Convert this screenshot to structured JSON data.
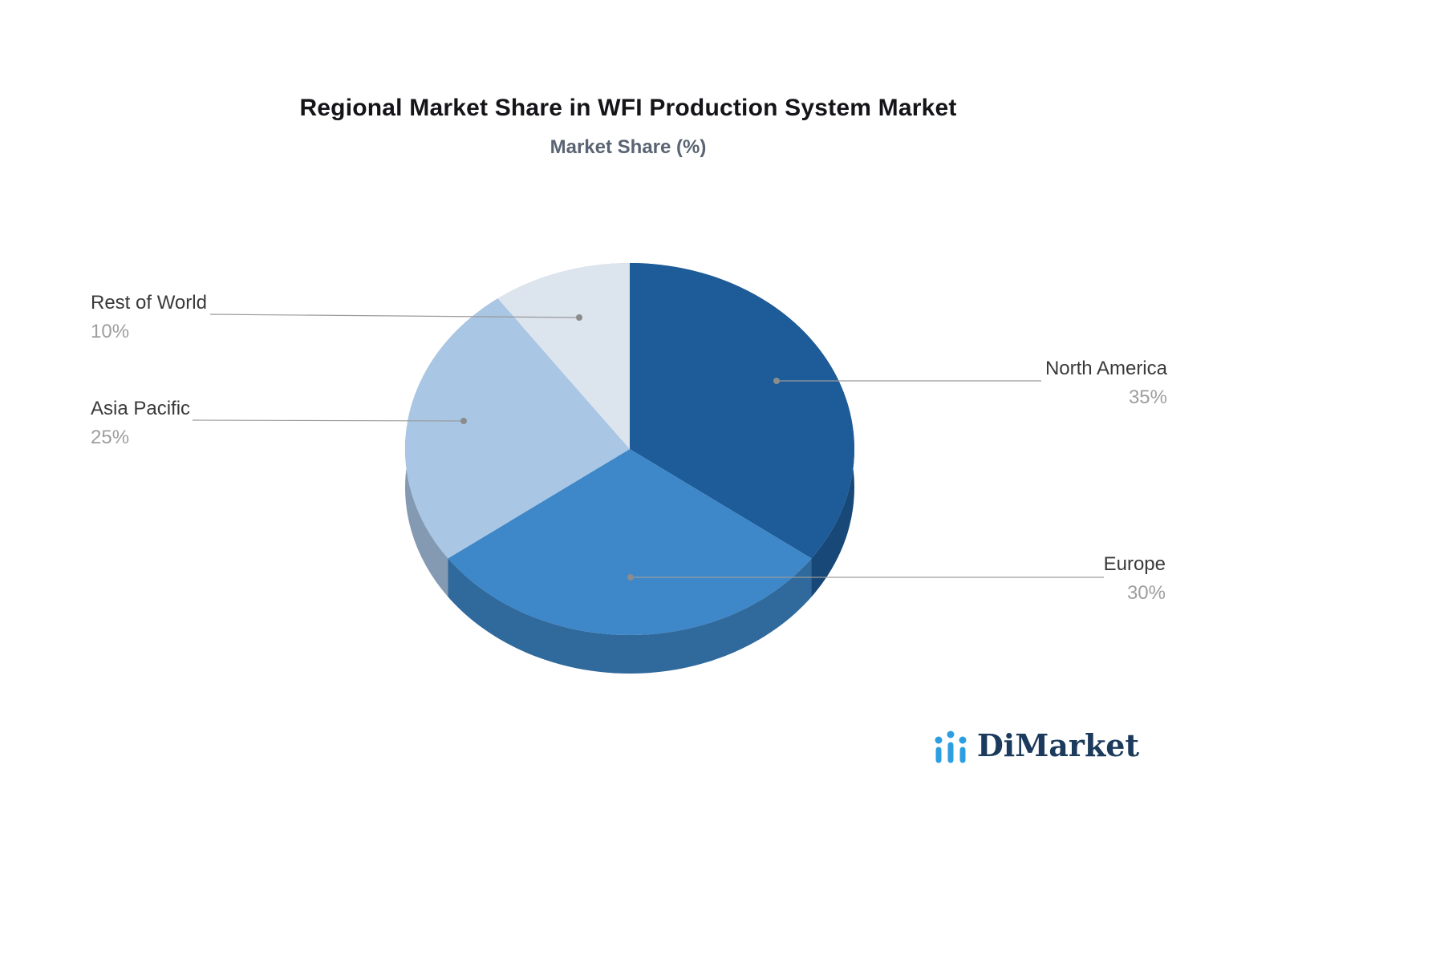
{
  "header": {
    "title": "Regional Market Share in WFI Production System Market",
    "subtitle": "Market Share (%)"
  },
  "chart_data": {
    "type": "pie",
    "style": "3d",
    "title": "Regional Market Share in WFI Production System Market",
    "subtitle": "Market Share (%)",
    "unit": "%",
    "labels": [
      "North America",
      "Europe",
      "Asia Pacific",
      "Rest of World"
    ],
    "values": [
      35,
      30,
      25,
      10
    ],
    "value_labels": [
      "35%",
      "30%",
      "25%",
      "10%"
    ],
    "colors": [
      "#1d5c99",
      "#3e87c8",
      "#a9c6e4",
      "#dce4ee"
    ],
    "start_angle": "top",
    "direction": "clockwise",
    "legend": "callout-labels"
  },
  "palette": {
    "background": "#ffffff",
    "title_color": "#141419",
    "subtitle_color": "#5a6472",
    "callout_label_color": "#3a3a3a",
    "callout_value_color": "#9e9e9e",
    "leader_line_color": "#9a9a9a"
  },
  "branding": {
    "name": "DiMarket",
    "icon": "bar-chart-icon",
    "icon_color": "#2d9fe0",
    "text_color": "#1b3a5c"
  }
}
